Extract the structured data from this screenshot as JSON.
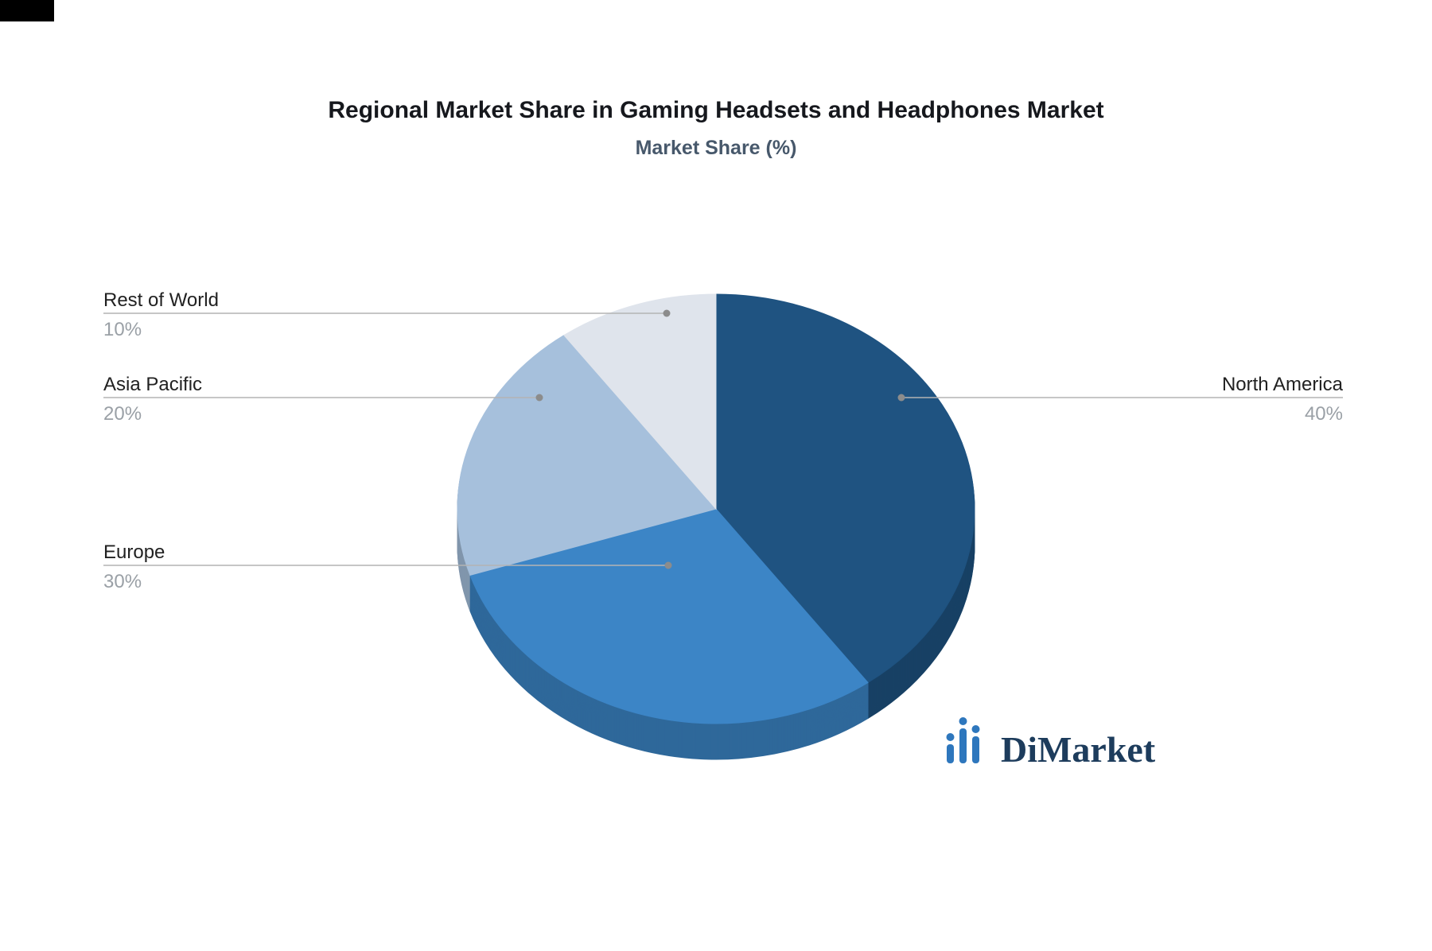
{
  "title": {
    "text": "Regional Market Share in Gaming Headsets and Headphones Market",
    "color": "#16181d"
  },
  "subtitle": {
    "text": "Market Share (%)",
    "color": "#47586b"
  },
  "chart_data": {
    "type": "pie",
    "style": "3d",
    "title": "Regional Market Share in Gaming Headsets and Headphones Market",
    "value_label": "Market Share (%)",
    "unit": "%",
    "start_angle": "top",
    "direction": "clockwise",
    "legend": "none (leader-line labels)",
    "slices": [
      {
        "label": "North America",
        "value": 40,
        "percent_label": "40%",
        "color": "#1f5381"
      },
      {
        "label": "Europe",
        "value": 30,
        "percent_label": "30%",
        "color": "#3c85c6"
      },
      {
        "label": "Asia Pacific",
        "value": 20,
        "percent_label": "20%",
        "color": "#a6c0dc"
      },
      {
        "label": "Rest of World",
        "value": 10,
        "percent_label": "10%",
        "color": "#dfe4ec"
      }
    ],
    "label_text_color": "#212121",
    "percent_text_color": "#9aa0a6"
  },
  "logo": {
    "text": "DiMarket",
    "icon": "bar-chart-icon",
    "text_color": "#1d3c5c",
    "icon_color": "#2e77bd"
  }
}
